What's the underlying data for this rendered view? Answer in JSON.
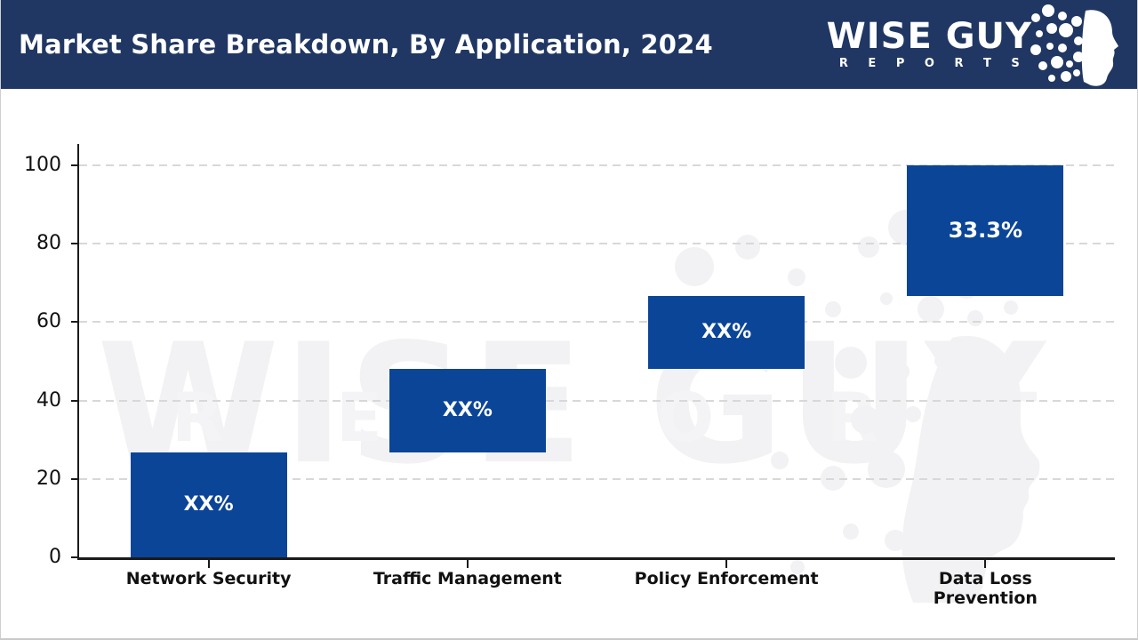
{
  "header": {
    "title": "Market Share Breakdown, By Application, 2024",
    "logo": {
      "line1": "WISE GUY",
      "line2": "R E P O R T S"
    }
  },
  "watermark": {
    "line1": "WISE GUY",
    "line2": "R E P O R T S"
  },
  "chart_data": {
    "type": "bar",
    "subtype": "floating-waterfall-segments",
    "title": "Market Share Breakdown, By Application, 2024",
    "categories": [
      "Network Security",
      "Traffic Management",
      "Policy Enforcement",
      "Data Loss Prevention"
    ],
    "xtick_lines": [
      [
        "Network Security"
      ],
      [
        "Traffic Management"
      ],
      [
        "Policy Enforcement"
      ],
      [
        "Data Loss",
        "Prevention"
      ]
    ],
    "segments": [
      {
        "category": "Network Security",
        "start": 0,
        "end": 26.8,
        "label": "XX%"
      },
      {
        "category": "Traffic Management",
        "start": 26.8,
        "end": 48.1,
        "label": "XX%"
      },
      {
        "category": "Policy Enforcement",
        "start": 48.1,
        "end": 66.7,
        "label": "XX%"
      },
      {
        "category": "Data Loss Prevention",
        "start": 66.7,
        "end": 100,
        "label": "33.3%"
      }
    ],
    "yticks": [
      0,
      20,
      40,
      60,
      80,
      100
    ],
    "ylim": [
      0,
      100
    ],
    "grid": "horizontal-dashed",
    "legend": "none",
    "xlabel": "",
    "ylabel": ""
  },
  "colors": {
    "header_navy": "#203763",
    "bar_blue": "#0b4598",
    "grid_gray": "#d8d8d8",
    "axis_dark": "#1a1a1a",
    "watermark_gray": "#f2f2f4",
    "title_white": "#ffffff"
  }
}
